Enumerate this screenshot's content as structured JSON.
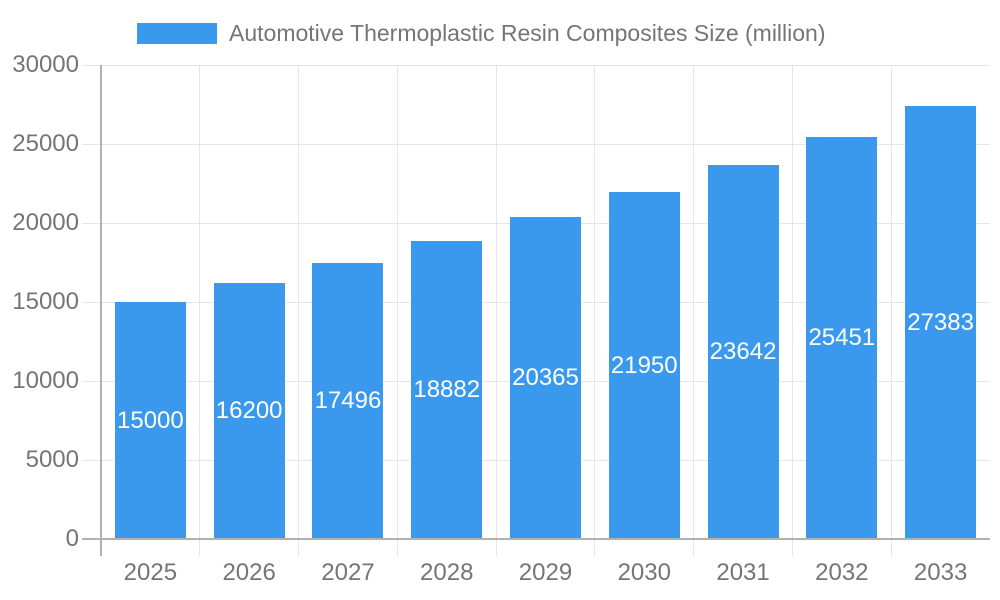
{
  "chart_data": {
    "type": "bar",
    "title": "Automotive Thermoplastic Resin Composites Size (million)",
    "categories": [
      "2025",
      "2026",
      "2027",
      "2028",
      "2029",
      "2030",
      "2031",
      "2032",
      "2033"
    ],
    "series": [
      {
        "name": "Automotive Thermoplastic Resin Composites Size (million)",
        "values": [
          15000,
          16200,
          17496,
          18882,
          20365,
          21950,
          23642,
          25451,
          27383
        ]
      }
    ],
    "data_labels_shown": true,
    "xlabel": "",
    "ylabel": "",
    "ylim": [
      0,
      30000
    ],
    "yticks": [
      0,
      5000,
      10000,
      15000,
      20000,
      25000,
      30000
    ],
    "grid": "on",
    "legend_position": "top"
  },
  "colors": {
    "bar": "#3a99ec",
    "axis_text": "#757575",
    "legend_text": "#757575",
    "gridline": "#e6e6e6",
    "axis_line": "#b1b1b1",
    "data_label": "#ffffff",
    "background": "#ffffff"
  }
}
